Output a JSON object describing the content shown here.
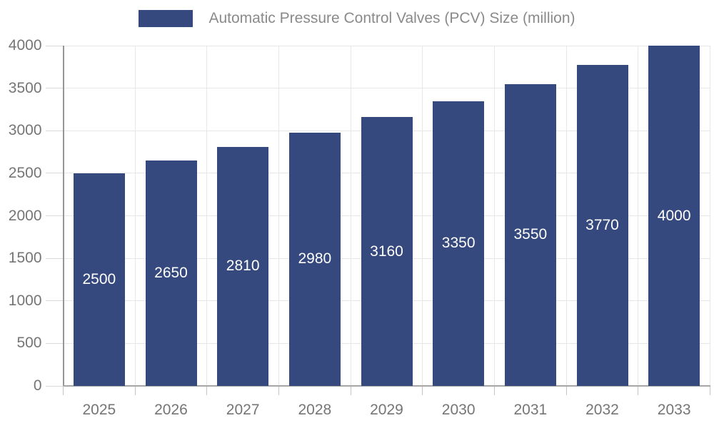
{
  "legend": {
    "label": "Automatic Pressure Control Valves (PCV) Size (million)"
  },
  "chart_data": {
    "type": "bar",
    "title": "Automatic Pressure Control Valves (PCV) Size (million)",
    "categories": [
      "2025",
      "2026",
      "2027",
      "2028",
      "2029",
      "2030",
      "2031",
      "2032",
      "2033"
    ],
    "values": [
      2500,
      2650,
      2810,
      2980,
      3160,
      3350,
      3550,
      3770,
      4000
    ],
    "series": [
      {
        "name": "Automatic Pressure Control Valves (PCV) Size (million)",
        "values": [
          2500,
          2650,
          2810,
          2980,
          3160,
          3350,
          3550,
          3770,
          4000
        ]
      }
    ],
    "xlabel": "",
    "ylabel": "",
    "ylim": [
      0,
      4000
    ],
    "ytick_step": 500,
    "ytick_labels": [
      "0",
      "500",
      "1000",
      "1500",
      "2000",
      "2500",
      "3000",
      "3500",
      "4000"
    ],
    "grid": true,
    "legend_position": "top",
    "value_labels": "inside-center",
    "colors": {
      "bar": "#36497e",
      "bar_value_text": "#ffffff",
      "axis_text": "#757575",
      "legend_text": "#8a8a8a",
      "gridline": "#e7e7e7",
      "axis_line": "#969696"
    }
  }
}
